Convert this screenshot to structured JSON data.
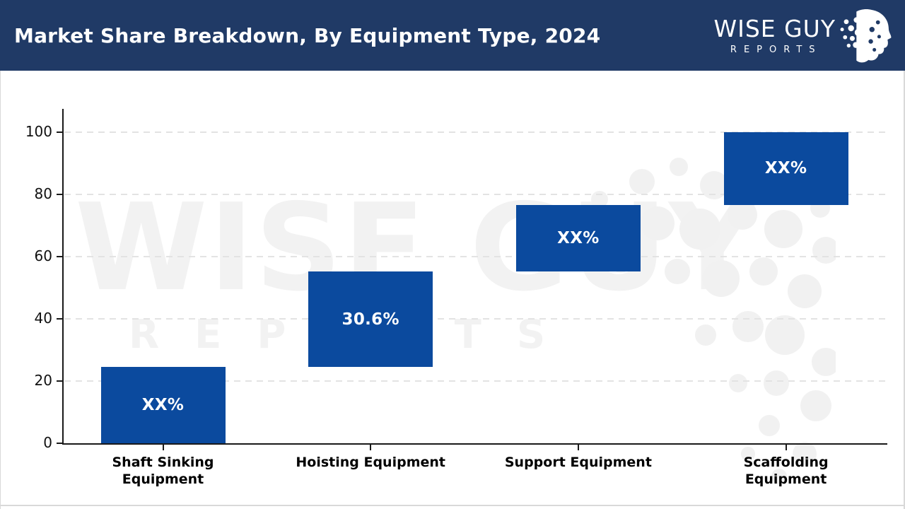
{
  "header": {
    "title": "Market Share Breakdown, By Equipment Type, 2024",
    "background_color": "#203A66",
    "brand": {
      "name": "WISE GUY",
      "subtitle": "REPORTS"
    }
  },
  "watermark": {
    "line1": "WISE GUY",
    "line2": "REPORTS"
  },
  "chart_data": {
    "type": "bar",
    "subtype": "floating-waterfall",
    "title": "Market Share Breakdown, By Equipment Type, 2024",
    "categories": [
      "Shaft Sinking Equipment",
      "Hoisting Equipment",
      "Support Equipment",
      "Scaffolding Equipment"
    ],
    "category_label_lines": [
      [
        "Shaft Sinking",
        "Equipment"
      ],
      [
        "Hoisting Equipment"
      ],
      [
        "Support Equipment"
      ],
      [
        "Scaffolding",
        "Equipment"
      ]
    ],
    "bars": [
      {
        "category": "Shaft Sinking Equipment",
        "label": "XX%",
        "start": 0,
        "end": 24.5
      },
      {
        "category": "Hoisting Equipment",
        "label": "30.6%",
        "start": 24.5,
        "end": 55.1
      },
      {
        "category": "Support Equipment",
        "label": "XX%",
        "start": 55.1,
        "end": 76.4
      },
      {
        "category": "Scaffolding Equipment",
        "label": "XX%",
        "start": 76.4,
        "end": 100
      }
    ],
    "bar_color": "#0B4A9E",
    "ylim": [
      0,
      100
    ],
    "yticks": [
      0,
      20,
      40,
      60,
      80,
      100
    ],
    "grid": "horizontal-dashed",
    "gridline_color": "#E3E3E3",
    "axis_color": "#1a1a1a",
    "legend": "none"
  }
}
